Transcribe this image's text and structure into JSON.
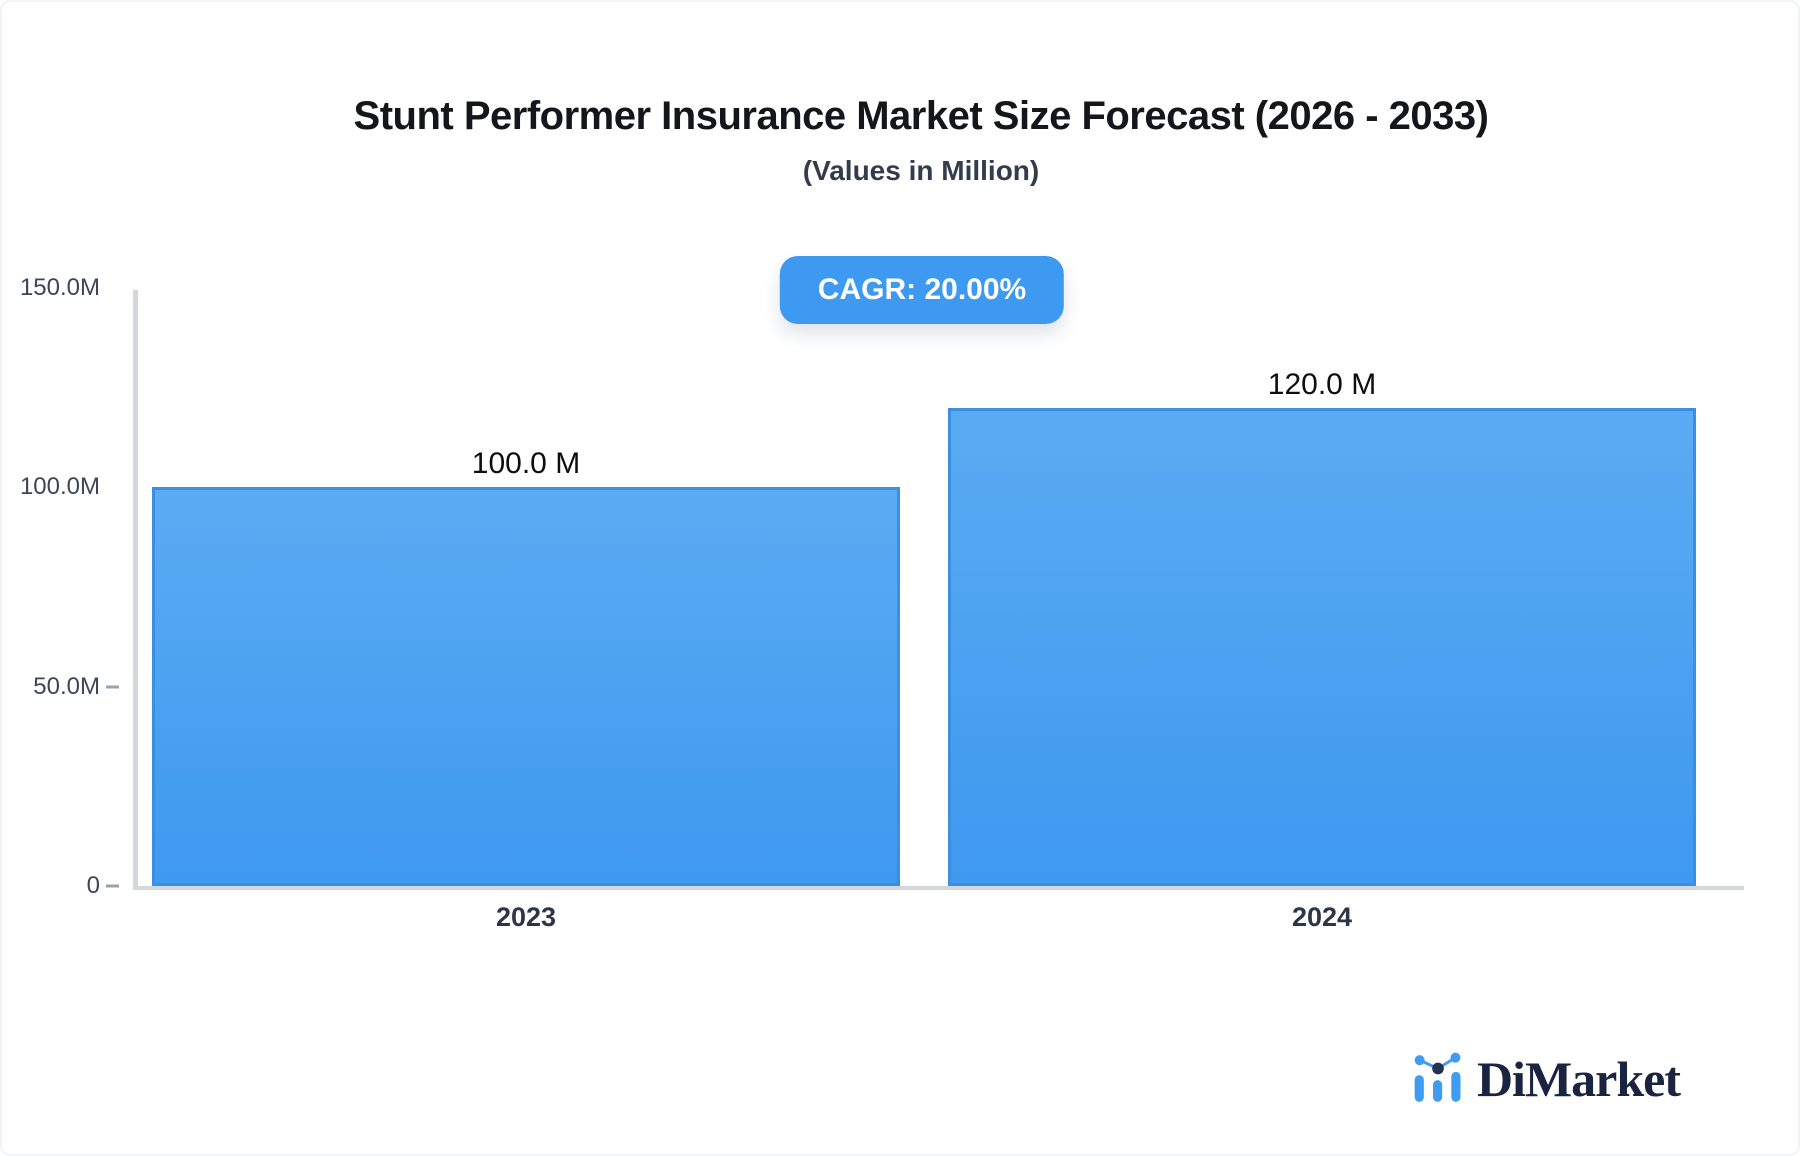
{
  "title": "Stunt Performer Insurance Market Size Forecast (2026 - 2033)",
  "subtitle": "(Values in Million)",
  "badge": {
    "label": "CAGR: 20.00%"
  },
  "brand": {
    "name": "DiMarket",
    "icon": "bar-chart-logo-icon"
  },
  "colors": {
    "bar_fill_top": "#5aabf3",
    "bar_fill_bottom": "#3f99ef",
    "bar_border": "#3a8fe3",
    "badge_bg": "#3d9af0",
    "axis_line": "#d4d8dd",
    "tick_dash": "#9aa2ad",
    "title_text": "#14161b",
    "subtitle_text": "#323c4e",
    "tick_text": "#3c4658",
    "value_text": "#0c0e11",
    "category_text": "#2c3648",
    "brand_text": "#1a2340",
    "brand_icon_blue": "#3f9cf3",
    "brand_icon_navy": "#223253"
  },
  "chart_data": {
    "type": "bar",
    "title": "Stunt Performer Insurance Market Size Forecast (2026 - 2033)",
    "subtitle": "(Values in Million)",
    "cagr": "20.00%",
    "unit": "Million",
    "categories": [
      "2023",
      "2024"
    ],
    "values": [
      100.0,
      120.0
    ],
    "value_labels": [
      "100.0 M",
      "120.0 M"
    ],
    "ylim": [
      0,
      150
    ],
    "y_ticks": [
      {
        "label": "150.0M",
        "value": 150,
        "dash": false
      },
      {
        "label": "100.0M",
        "value": 100,
        "dash": false
      },
      {
        "label": "50.0M",
        "value": 50,
        "dash": true
      },
      {
        "label": "0",
        "value": 0,
        "dash": true
      }
    ],
    "grid": false,
    "legend": false,
    "bar_color": "#4aa1f0"
  }
}
